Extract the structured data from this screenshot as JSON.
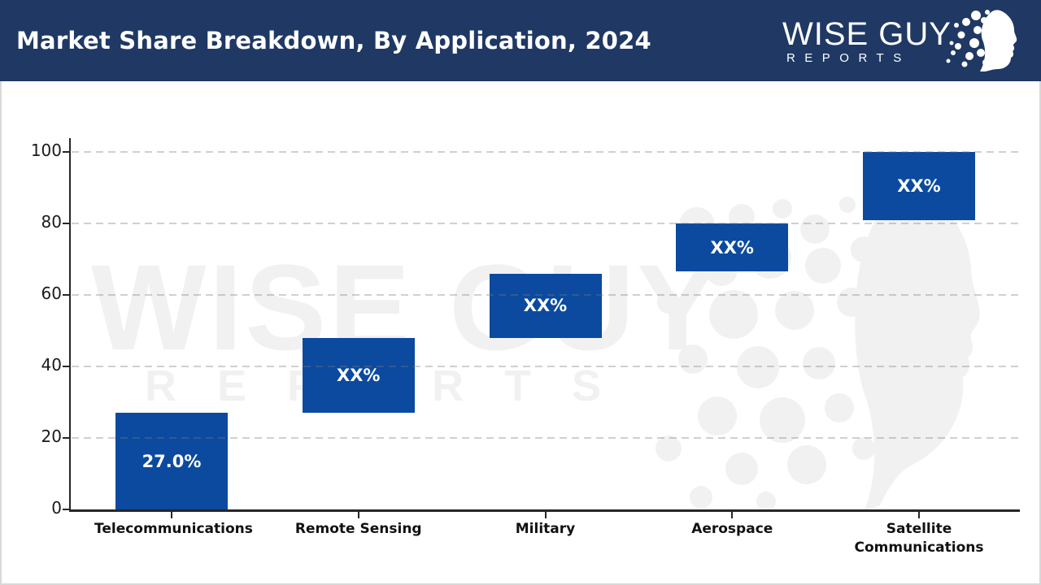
{
  "header": {
    "title": "Market Share Breakdown, By Application, 2024",
    "bg_color": "#1f3864",
    "logo": {
      "line1": "WISE GUY",
      "line2": "REPORTS"
    }
  },
  "watermark": {
    "line1": "WISE GUY",
    "line2": "REPORTS"
  },
  "chart_data": {
    "type": "bar",
    "subtype": "floating-waterfall",
    "title": "Market Share Breakdown, By Application, 2024",
    "categories": [
      "Telecommunications",
      "Remote Sensing",
      "Military",
      "Aerospace",
      "Satellite Communications"
    ],
    "segments": [
      {
        "category": "Telecommunications",
        "start": 0,
        "end": 27,
        "label": "27.0%"
      },
      {
        "category": "Remote Sensing",
        "start": 27,
        "end": 48,
        "label": "XX%"
      },
      {
        "category": "Military",
        "start": 48,
        "end": 66,
        "label": "XX%"
      },
      {
        "category": "Aerospace",
        "start": 66.5,
        "end": 80,
        "label": "XX%"
      },
      {
        "category": "Satellite Communications",
        "start": 81,
        "end": 100,
        "label": "XX%"
      }
    ],
    "ylim": [
      0,
      100
    ],
    "yticks": [
      0,
      20,
      40,
      60,
      80,
      100
    ],
    "xlabel": "",
    "ylabel": "",
    "grid": "horizontal-dashed",
    "legend": "none",
    "bar_color": "#0b4a9f",
    "bar_label_color": "#ffffff",
    "axis_color": "#262626",
    "tick_label_color": "#1a1a1a",
    "grid_color": "#d9d9d9"
  }
}
